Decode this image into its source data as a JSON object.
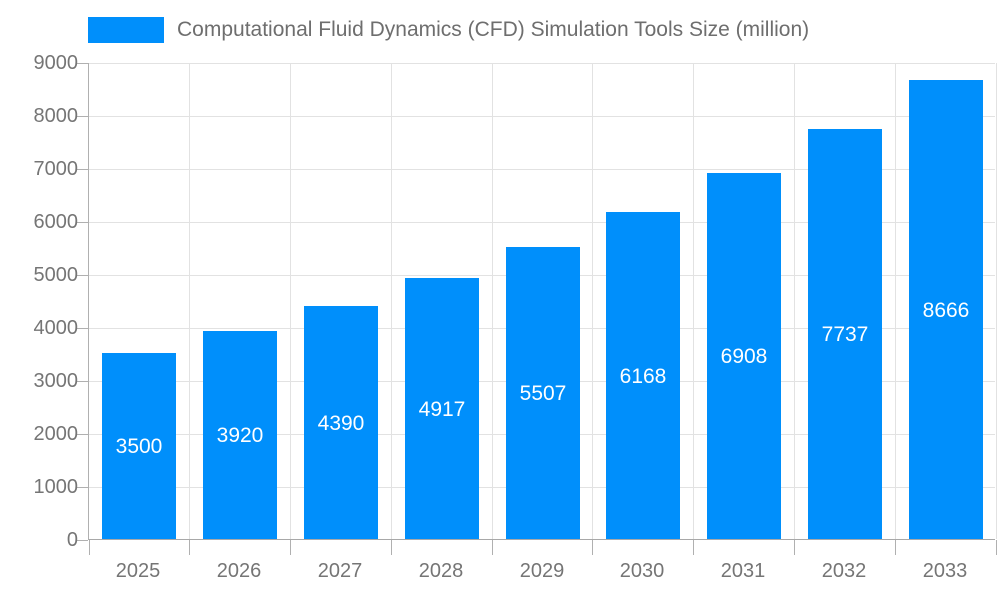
{
  "chart_data": {
    "type": "bar",
    "title": "Computational Fluid Dynamics (CFD) Simulation Tools Size (million)",
    "categories": [
      "2025",
      "2026",
      "2027",
      "2028",
      "2029",
      "2030",
      "2031",
      "2032",
      "2033"
    ],
    "values": [
      3500,
      3920,
      4390,
      4917,
      5507,
      6168,
      6908,
      7737,
      8666
    ],
    "series_name": "Computational Fluid Dynamics (CFD) Simulation Tools Size (million)",
    "xlabel": "",
    "ylabel": "",
    "ylim": [
      0,
      9000
    ],
    "ytick_step": 1000,
    "ytick_labels": [
      "0",
      "1000",
      "2000",
      "3000",
      "4000",
      "5000",
      "6000",
      "7000",
      "8000",
      "9000"
    ],
    "grid": true,
    "legend_position": "top-left",
    "bar_color": "#008FFB",
    "value_label_color": "#ffffff",
    "axis_text_color": "#757575",
    "legend_text_color": "#6e6e6e",
    "gridline_color": "#e2e2e2",
    "axis_line_color": "#b0b0b0",
    "background_color": "#ffffff"
  }
}
